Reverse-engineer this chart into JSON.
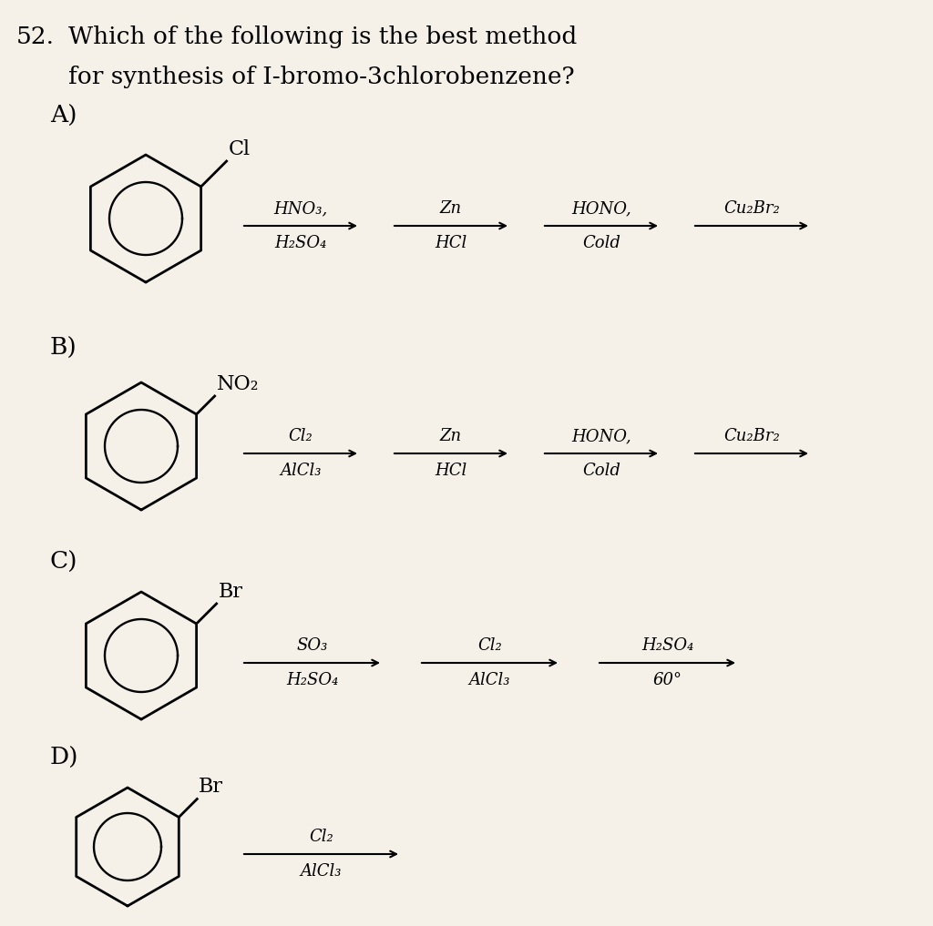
{
  "bg_color": "#f5f0e8",
  "text_color": "#000000",
  "title_num": "52.",
  "title_line1": "Which of the following is the best method",
  "title_line2": "for synthesis of I-bromo-3chlorobenzene?",
  "options": [
    "A)",
    "B)",
    "C)",
    "D)"
  ],
  "option_A_substituent": "Cl",
  "option_A_top": [
    "HNO₃,",
    "Zn",
    "HONO,",
    "Cu₂Br₂"
  ],
  "option_A_bot": [
    "H₂SO₄",
    "HCl",
    "Cold",
    ""
  ],
  "option_B_substituent": "NO₂",
  "option_B_top": [
    "Cl₂",
    "Zn",
    "HONO,",
    "Cu₂Br₂"
  ],
  "option_B_bot": [
    "AlCl₃",
    "HCl",
    "Cold",
    ""
  ],
  "option_C_substituent": "Br",
  "option_C_top": [
    "SO₃",
    "Cl₂",
    "H₂SO₄"
  ],
  "option_C_bot": [
    "H₂SO₄",
    "AlCl₃",
    "60°"
  ],
  "option_D_substituent": "Br",
  "option_D_top": [
    "Cl₂"
  ],
  "option_D_bot": [
    "AlCl₃"
  ]
}
